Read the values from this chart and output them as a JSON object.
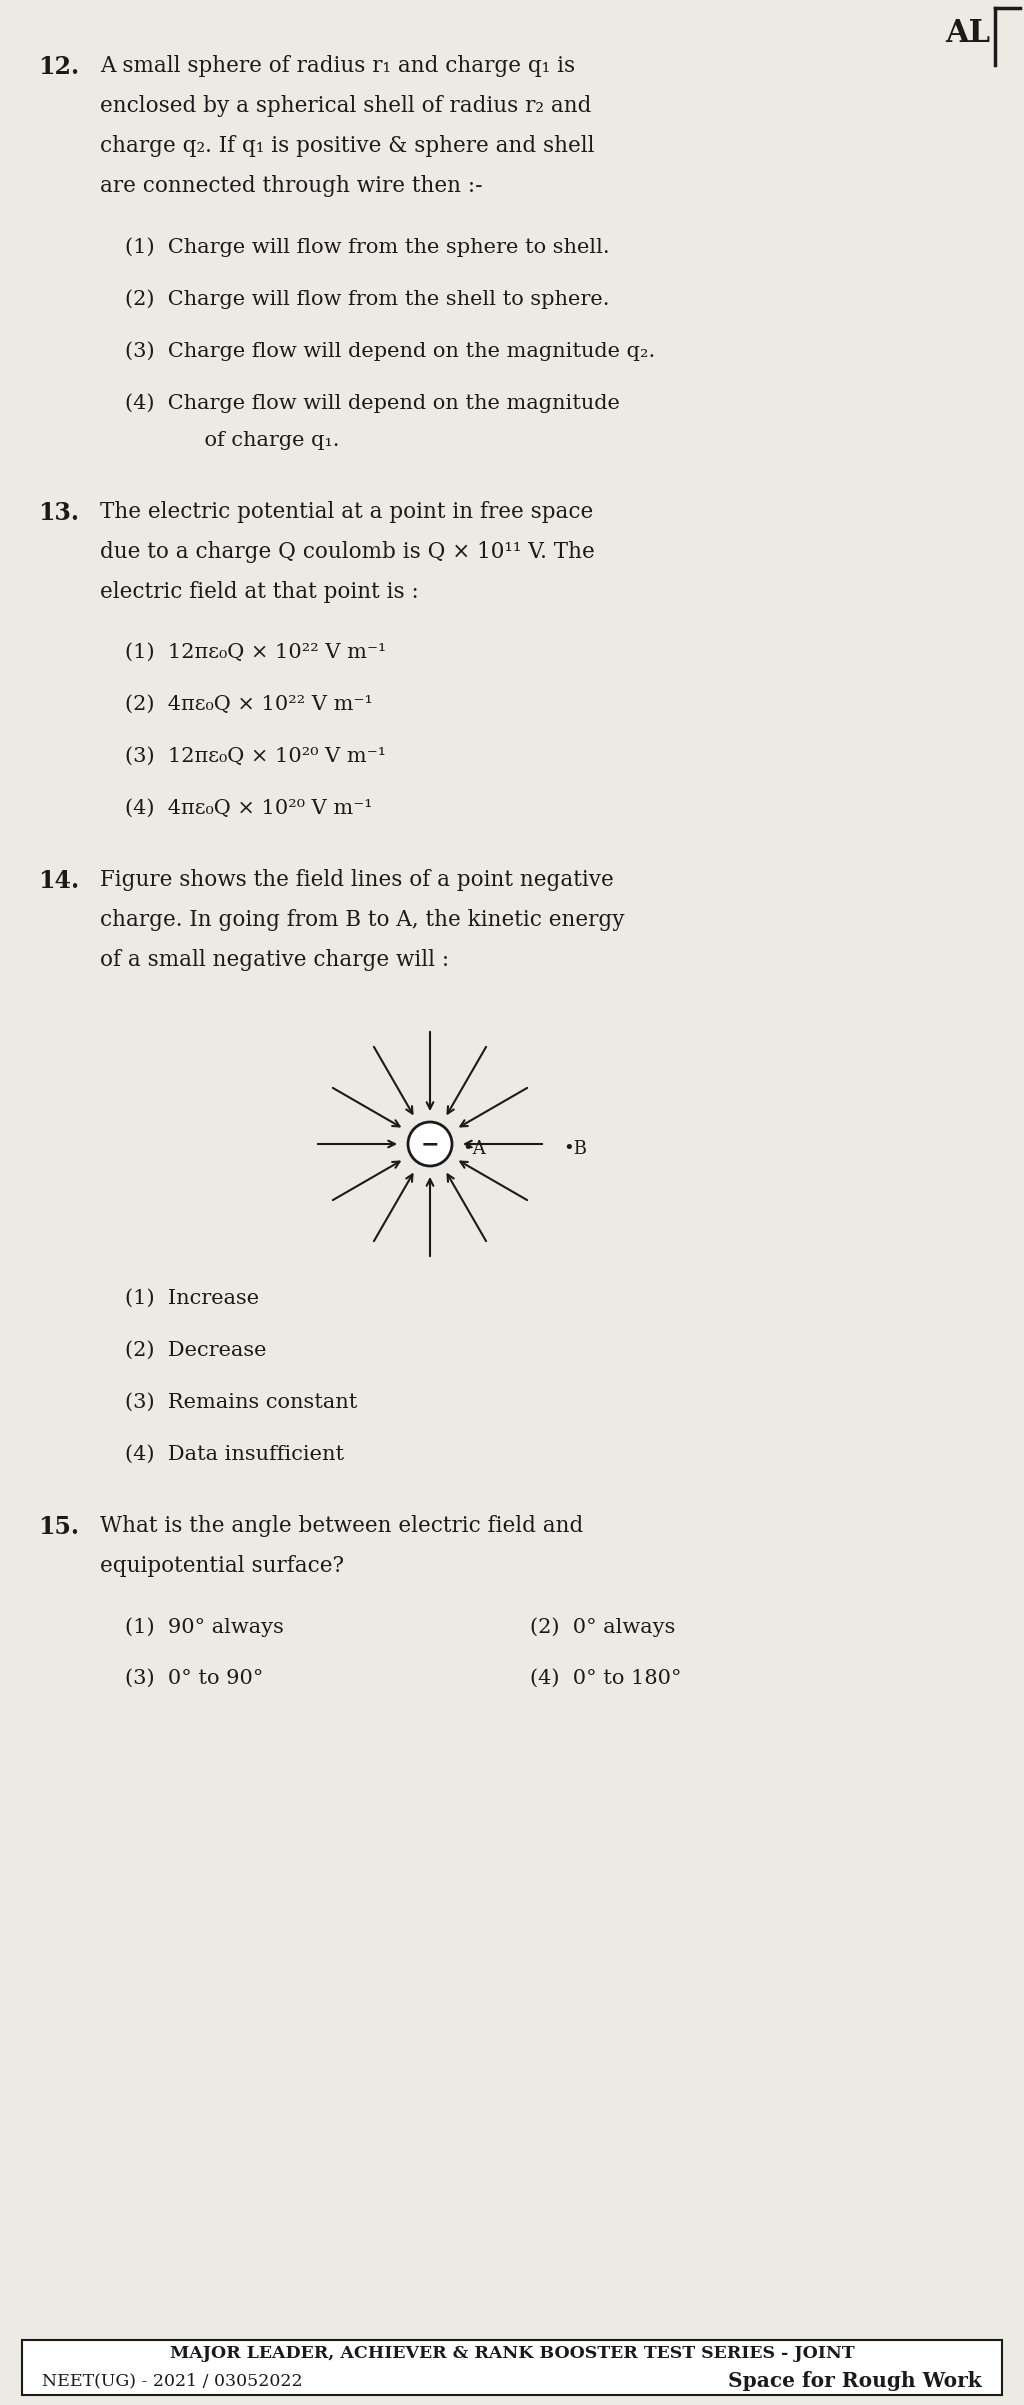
{
  "bg_color": "#ede9e3",
  "text_color": "#1a1a1a",
  "title_text": "AL",
  "q12_num": "12.",
  "q12_text1": "A small sphere of radius r₁ and charge q₁ is",
  "q12_text2": "enclosed by a spherical shell of radius r₂ and",
  "q12_text3": "charge q₂. If q₁ is positive & sphere and shell",
  "q12_text4": "are connected through wire then :-",
  "q12_opt1": "(1)  Charge will flow from the sphere to shell.",
  "q12_opt2": "(2)  Charge will flow from the shell to sphere.",
  "q12_opt3": "(3)  Charge flow will depend on the magnitude q₂.",
  "q12_opt4_line1": "(4)  Charge flow will depend on the magnitude",
  "q12_opt4_line2": "            of charge q₁.",
  "q13_num": "13.",
  "q13_text1": "The electric potential at a point in free space",
  "q13_text2": "due to a charge Q coulomb is Q × 10¹¹ V. The",
  "q13_text3": "electric field at that point is :",
  "q13_opt1": "(1)  12πε₀Q × 10²² V m⁻¹",
  "q13_opt2": "(2)  4πε₀Q × 10²² V m⁻¹",
  "q13_opt3": "(3)  12πε₀Q × 10²⁰ V m⁻¹",
  "q13_opt4": "(4)  4πε₀Q × 10²⁰ V m⁻¹",
  "q14_num": "14.",
  "q14_text1": "Figure shows the field lines of a point negative",
  "q14_text2": "charge. In going from B to A, the kinetic energy",
  "q14_text3": "of a small negative charge will :",
  "q14_opt1": "(1)  Increase",
  "q14_opt2": "(2)  Decrease",
  "q14_opt3": "(3)  Remains constant",
  "q14_opt4": "(4)  Data insufficient",
  "q15_num": "15.",
  "q15_text1": "What is the angle between electric field and",
  "q15_text2": "equipotential surface?",
  "q15_opt1": "(1)  90° always",
  "q15_opt2": "(2)  0° always",
  "q15_opt3": "(3)  0° to 90°",
  "q15_opt4": "(4)  0° to 180°",
  "footer1": "MAJOR LEADER, ACHIEVER & RANK BOOSTER TEST SERIES - JOINT",
  "footer2": "NEET(UG) - 2021 / 03052022",
  "footer3": "Space for Rough Work",
  "label_A": "•A",
  "label_B": "•B"
}
